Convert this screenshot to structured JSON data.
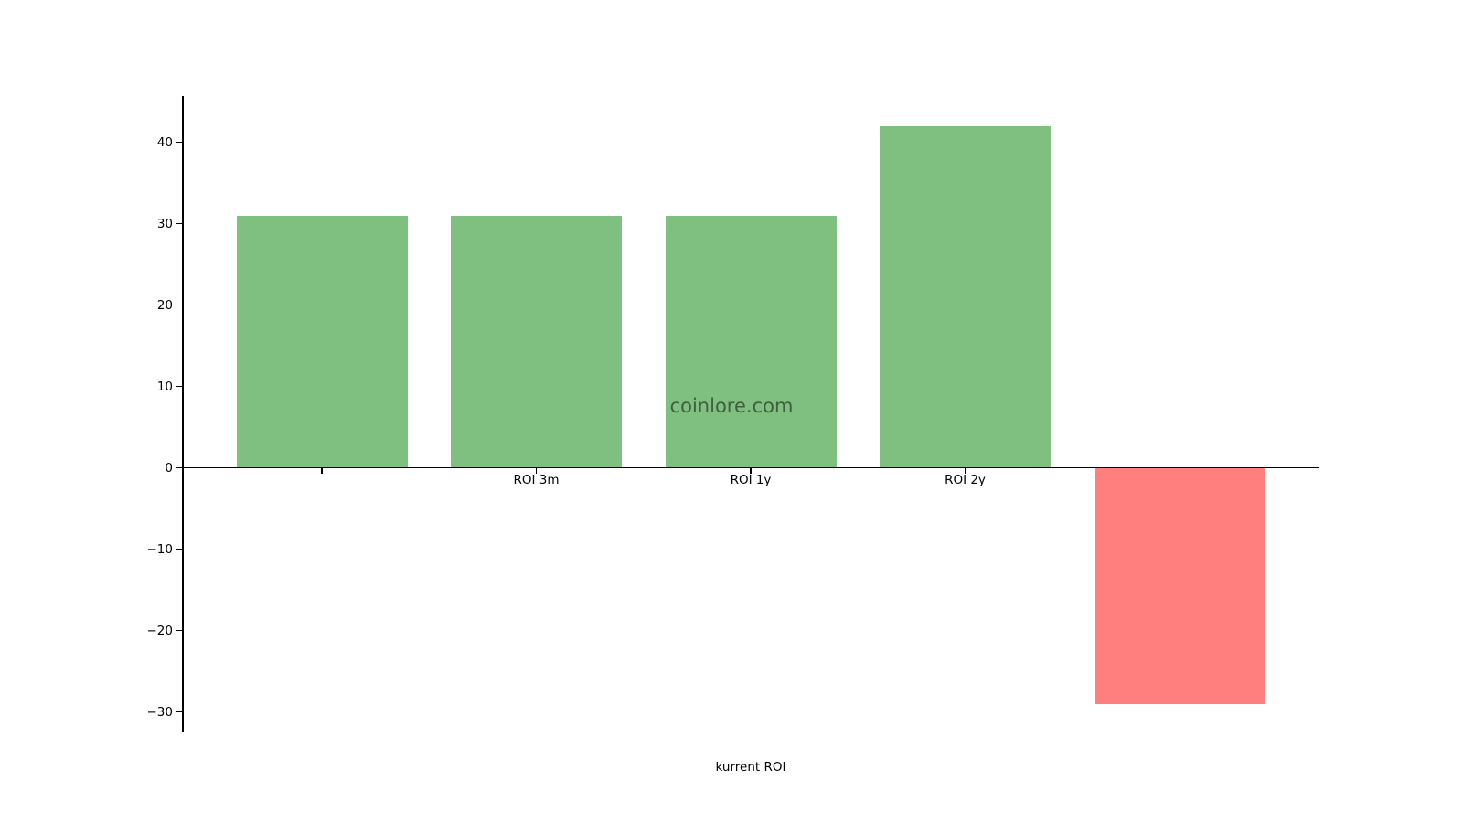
{
  "figure": {
    "watermark": "coinlore.com",
    "background": "#ffffff"
  },
  "chart_data": {
    "type": "bar",
    "title": "",
    "xlabel": "kurrent ROI",
    "ylabel": "",
    "categories": [
      "",
      "ROI 3m",
      "ROI 1y",
      "ROI 2y",
      ""
    ],
    "values": [
      31,
      31,
      31,
      42,
      -29
    ],
    "yticks": [
      40,
      30,
      20,
      10,
      0,
      -10,
      -20,
      -30
    ],
    "ytick_labels": [
      "40",
      "30",
      "20",
      "10",
      "0",
      "−10",
      "−20",
      "−30"
    ],
    "ylim": [
      -32.4,
      45.7
    ],
    "grid": false,
    "legend": false,
    "bar_color_positive": "#7fbf7f",
    "bar_color_negative": "#ff7f7f",
    "axis_color": "#000000",
    "watermark_color": "rgba(0,0,0,0.5)",
    "label_color": "#000000"
  }
}
